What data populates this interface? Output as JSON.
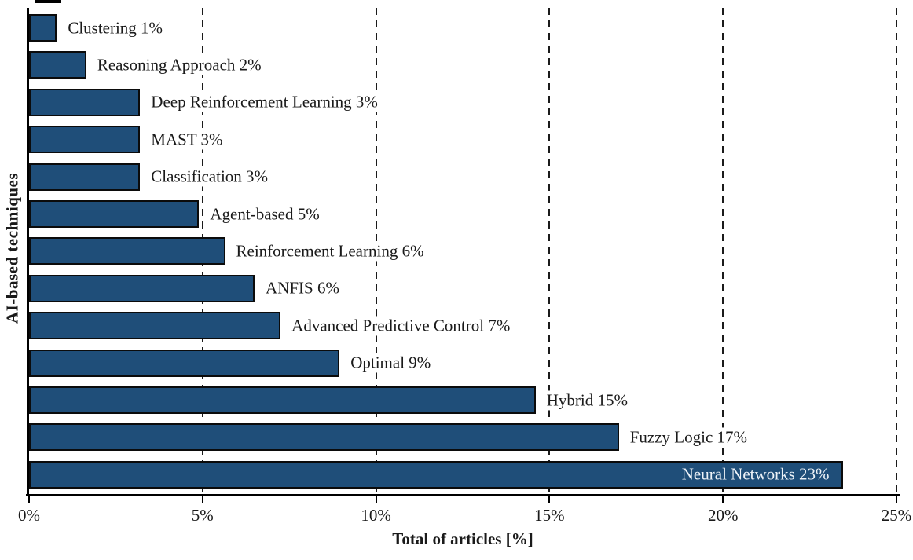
{
  "chart_data": {
    "type": "bar",
    "orientation": "horizontal",
    "title": "",
    "xlabel": "Total of articles [%]",
    "ylabel": "AI-based techniques",
    "xlim": [
      0,
      25
    ],
    "x_tick_values": [
      0,
      5,
      10,
      15,
      20,
      25
    ],
    "x_tick_labels": [
      "0%",
      "5%",
      "10%",
      "15%",
      "20%",
      "25%"
    ],
    "gridline_values": [
      5,
      10,
      15,
      20,
      25
    ],
    "grid_style": "dashed-vertical",
    "legend_position": "none",
    "categories": [
      "Clustering",
      "Reasoning Approach",
      "Deep Reinforcement Learning",
      "MAST",
      "Classification",
      "Agent-based",
      "Reinforcement Learning",
      "ANFIS",
      "Advanced Predictive Control",
      "Optimal",
      "Hybrid",
      "Fuzzy Logic",
      "Neural Networks"
    ],
    "values": [
      1,
      2,
      3,
      3,
      3,
      5,
      6,
      6,
      7,
      9,
      15,
      17,
      23
    ],
    "bar_labels": [
      "Clustering 1%",
      "Reasoning Approach 2%",
      "Deep Reinforcement Learning 3%",
      "MAST 3%",
      "Classification 3%",
      "Agent-based 5%",
      "Reinforcement Learning 6%",
      "ANFIS 6%",
      "Advanced Predictive Control 7%",
      "Optimal 9%",
      "Hybrid 15%",
      "Fuzzy Logic 17%",
      "Neural Networks 23%"
    ],
    "bar_lengths_precise_percent": [
      0.8,
      1.65,
      3.2,
      3.2,
      3.2,
      4.9,
      5.65,
      6.5,
      7.25,
      8.95,
      14.6,
      17.0,
      23.45
    ],
    "label_inside_bar": [
      false,
      false,
      false,
      false,
      false,
      false,
      false,
      false,
      false,
      false,
      false,
      false,
      true
    ],
    "colors": {
      "bar_fill": "#1F4E79",
      "bar_border": "#0b0b0b",
      "axis": "#000000",
      "gridline": "#1b1b1b",
      "label_text": "#1a1a1a",
      "label_inside_text": "#eef3f8",
      "background": "#ffffff"
    }
  }
}
